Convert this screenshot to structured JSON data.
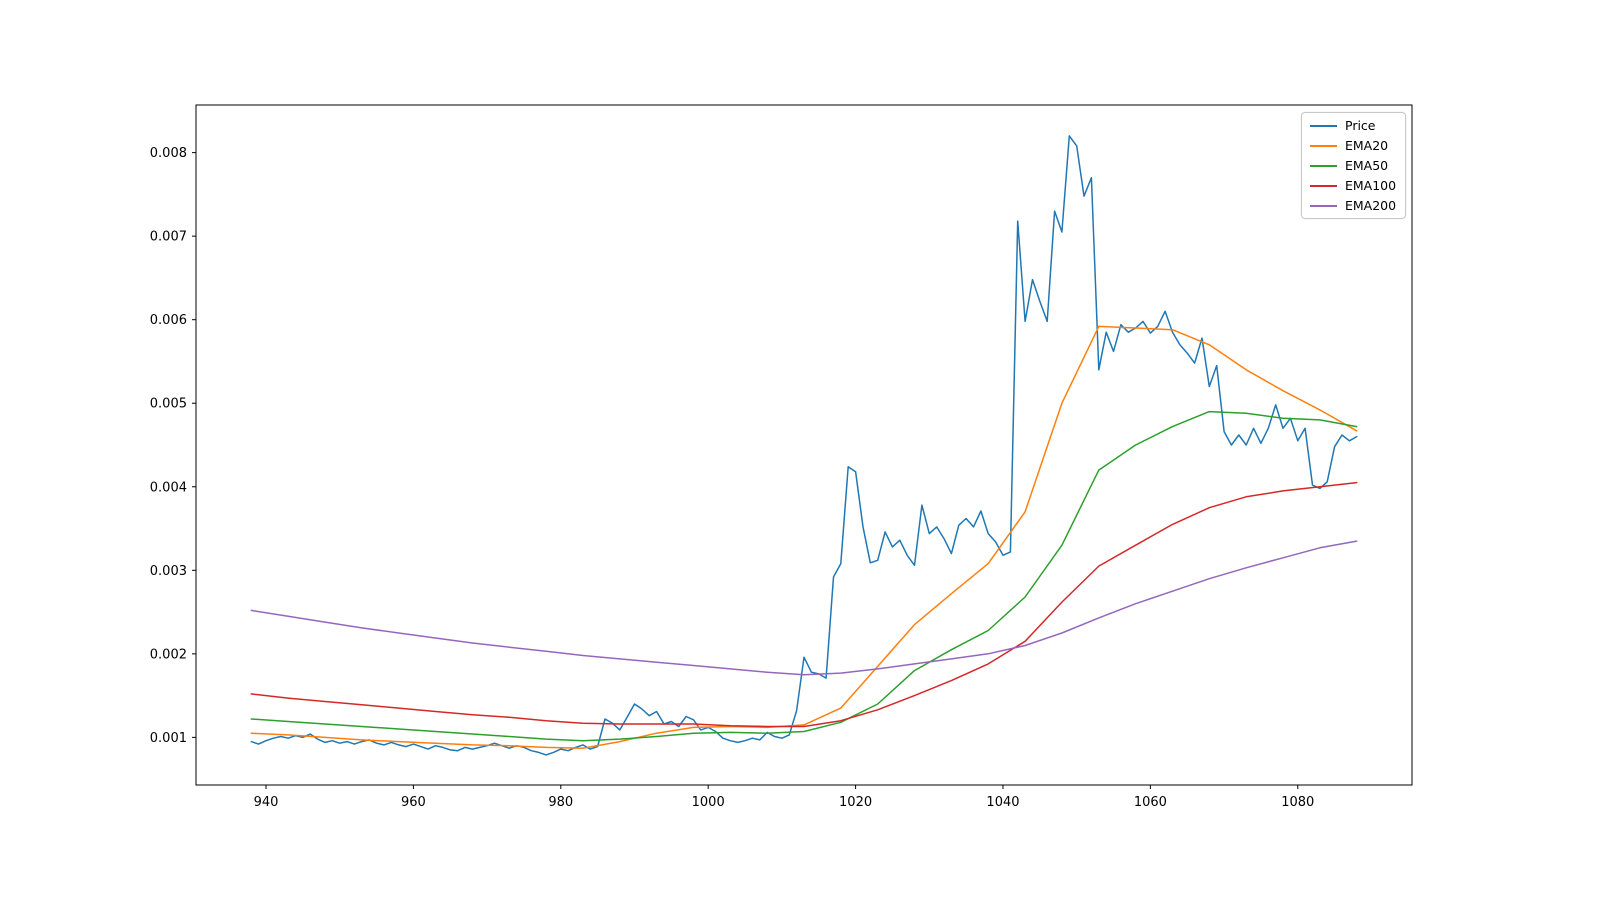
{
  "figure": {
    "background": "#ffffff"
  },
  "chart_data": {
    "type": "line",
    "title": "",
    "xlabel": "",
    "ylabel": "",
    "grid": false,
    "legend_position": "upper right",
    "xlim": [
      930.5,
      1095.5
    ],
    "ylim": [
      0.00043,
      0.00857
    ],
    "x_ticks": [
      940,
      960,
      980,
      1000,
      1020,
      1040,
      1060,
      1080
    ],
    "y_ticks": [
      0.001,
      0.002,
      0.003,
      0.004,
      0.005,
      0.006,
      0.007,
      0.008
    ],
    "series": [
      {
        "name": "Price",
        "color": "#1f77b4",
        "x": [
          938,
          939,
          940,
          941,
          942,
          943,
          944,
          945,
          946,
          947,
          948,
          949,
          950,
          951,
          952,
          953,
          954,
          955,
          956,
          957,
          958,
          959,
          960,
          961,
          962,
          963,
          964,
          965,
          966,
          967,
          968,
          969,
          970,
          971,
          972,
          973,
          974,
          975,
          976,
          977,
          978,
          979,
          980,
          981,
          982,
          983,
          984,
          985,
          986,
          987,
          988,
          989,
          990,
          991,
          992,
          993,
          994,
          995,
          996,
          997,
          998,
          999,
          1000,
          1001,
          1002,
          1003,
          1004,
          1005,
          1006,
          1007,
          1008,
          1009,
          1010,
          1011,
          1012,
          1013,
          1014,
          1015,
          1016,
          1017,
          1018,
          1019,
          1020,
          1021,
          1022,
          1023,
          1024,
          1025,
          1026,
          1027,
          1028,
          1029,
          1030,
          1031,
          1032,
          1033,
          1034,
          1035,
          1036,
          1037,
          1038,
          1039,
          1040,
          1041,
          1042,
          1043,
          1044,
          1045,
          1046,
          1047,
          1048,
          1049,
          1050,
          1051,
          1052,
          1053,
          1054,
          1055,
          1056,
          1057,
          1058,
          1059,
          1060,
          1061,
          1062,
          1063,
          1064,
          1065,
          1066,
          1067,
          1068,
          1069,
          1070,
          1071,
          1072,
          1073,
          1074,
          1075,
          1076,
          1077,
          1078,
          1079,
          1080,
          1081,
          1082,
          1083,
          1084,
          1085,
          1086,
          1087,
          1088
        ],
        "y": [
          0.00095,
          0.00092,
          0.00096,
          0.00099,
          0.00101,
          0.00099,
          0.00102,
          0.001,
          0.00104,
          0.00098,
          0.00094,
          0.00096,
          0.00093,
          0.00095,
          0.00092,
          0.00095,
          0.00097,
          0.00093,
          0.00091,
          0.00094,
          0.00091,
          0.00089,
          0.00092,
          0.00089,
          0.00086,
          0.0009,
          0.00088,
          0.00085,
          0.00084,
          0.00088,
          0.00086,
          0.00088,
          0.0009,
          0.00093,
          0.0009,
          0.00087,
          0.0009,
          0.00088,
          0.00084,
          0.00082,
          0.00079,
          0.00082,
          0.00086,
          0.00084,
          0.00088,
          0.00091,
          0.00086,
          0.00089,
          0.00122,
          0.00117,
          0.00109,
          0.00124,
          0.0014,
          0.00134,
          0.00126,
          0.00131,
          0.00116,
          0.00119,
          0.00113,
          0.00125,
          0.00121,
          0.00109,
          0.00112,
          0.00107,
          0.00099,
          0.00096,
          0.00094,
          0.00096,
          0.00099,
          0.00097,
          0.00106,
          0.00101,
          0.00099,
          0.00103,
          0.00132,
          0.00196,
          0.00178,
          0.00176,
          0.00171,
          0.00292,
          0.00308,
          0.00424,
          0.00418,
          0.00352,
          0.00309,
          0.00312,
          0.00346,
          0.00328,
          0.00336,
          0.00318,
          0.00306,
          0.00378,
          0.00344,
          0.00352,
          0.00338,
          0.0032,
          0.00354,
          0.00362,
          0.00352,
          0.00371,
          0.00344,
          0.00334,
          0.00318,
          0.00322,
          0.00718,
          0.00598,
          0.00648,
          0.00622,
          0.00598,
          0.0073,
          0.00705,
          0.0082,
          0.00808,
          0.00748,
          0.0077,
          0.0054,
          0.00585,
          0.00562,
          0.00594,
          0.00585,
          0.0059,
          0.00598,
          0.00584,
          0.00592,
          0.0061,
          0.00585,
          0.0057,
          0.0056,
          0.00548,
          0.00578,
          0.0052,
          0.00545,
          0.00466,
          0.0045,
          0.00462,
          0.0045,
          0.0047,
          0.00452,
          0.0047,
          0.00498,
          0.0047,
          0.00482,
          0.00455,
          0.0047,
          0.00402,
          0.00398,
          0.00406,
          0.00448,
          0.00462,
          0.00455,
          0.0046
        ]
      },
      {
        "name": "EMA20",
        "color": "#ff7f0e",
        "x": [
          938,
          943,
          948,
          953,
          958,
          963,
          968,
          973,
          978,
          983,
          988,
          993,
          998,
          1003,
          1008,
          1013,
          1018,
          1023,
          1028,
          1033,
          1038,
          1043,
          1048,
          1053,
          1058,
          1063,
          1068,
          1073,
          1078,
          1083,
          1088
        ],
        "y": [
          0.00105,
          0.00103,
          0.001,
          0.00097,
          0.00095,
          0.00093,
          0.00091,
          0.0009,
          0.00088,
          0.00087,
          0.00095,
          0.00105,
          0.00112,
          0.00113,
          0.00112,
          0.00115,
          0.00135,
          0.00185,
          0.00235,
          0.00272,
          0.00308,
          0.0037,
          0.005,
          0.00592,
          0.0059,
          0.00588,
          0.0057,
          0.0054,
          0.00515,
          0.00492,
          0.00467
        ]
      },
      {
        "name": "EMA50",
        "color": "#2ca02c",
        "x": [
          938,
          943,
          948,
          953,
          958,
          963,
          968,
          973,
          978,
          983,
          988,
          993,
          998,
          1003,
          1008,
          1013,
          1018,
          1023,
          1028,
          1033,
          1038,
          1043,
          1048,
          1053,
          1058,
          1063,
          1068,
          1073,
          1078,
          1083,
          1088
        ],
        "y": [
          0.00122,
          0.00119,
          0.00116,
          0.00113,
          0.0011,
          0.00107,
          0.00104,
          0.00101,
          0.00098,
          0.00096,
          0.00098,
          0.00101,
          0.00105,
          0.00106,
          0.00105,
          0.00107,
          0.00118,
          0.0014,
          0.0018,
          0.00205,
          0.00228,
          0.00268,
          0.0033,
          0.0042,
          0.0045,
          0.00472,
          0.0049,
          0.00488,
          0.00482,
          0.0048,
          0.00472
        ]
      },
      {
        "name": "EMA100",
        "color": "#d62728",
        "x": [
          938,
          943,
          948,
          953,
          958,
          963,
          968,
          973,
          978,
          983,
          988,
          993,
          998,
          1003,
          1008,
          1013,
          1018,
          1023,
          1028,
          1033,
          1038,
          1043,
          1048,
          1053,
          1058,
          1063,
          1068,
          1073,
          1078,
          1083,
          1088
        ],
        "y": [
          0.00152,
          0.00147,
          0.00143,
          0.00139,
          0.00135,
          0.00131,
          0.00127,
          0.00124,
          0.0012,
          0.00117,
          0.00116,
          0.00116,
          0.00116,
          0.00114,
          0.00113,
          0.00113,
          0.0012,
          0.00133,
          0.0015,
          0.00168,
          0.00188,
          0.00215,
          0.00262,
          0.00305,
          0.0033,
          0.00355,
          0.00375,
          0.00388,
          0.00395,
          0.004,
          0.00405
        ]
      },
      {
        "name": "EMA200",
        "color": "#9467bd",
        "x": [
          938,
          943,
          948,
          953,
          958,
          963,
          968,
          973,
          978,
          983,
          988,
          993,
          998,
          1003,
          1008,
          1013,
          1018,
          1023,
          1028,
          1033,
          1038,
          1043,
          1048,
          1053,
          1058,
          1063,
          1068,
          1073,
          1078,
          1083,
          1088
        ],
        "y": [
          0.00252,
          0.00245,
          0.00238,
          0.00231,
          0.00225,
          0.00219,
          0.00213,
          0.00208,
          0.00203,
          0.00198,
          0.00194,
          0.0019,
          0.00186,
          0.00182,
          0.00178,
          0.00175,
          0.00177,
          0.00182,
          0.00188,
          0.00194,
          0.002,
          0.0021,
          0.00225,
          0.00243,
          0.0026,
          0.00275,
          0.0029,
          0.00303,
          0.00315,
          0.00327,
          0.00335
        ]
      }
    ]
  }
}
